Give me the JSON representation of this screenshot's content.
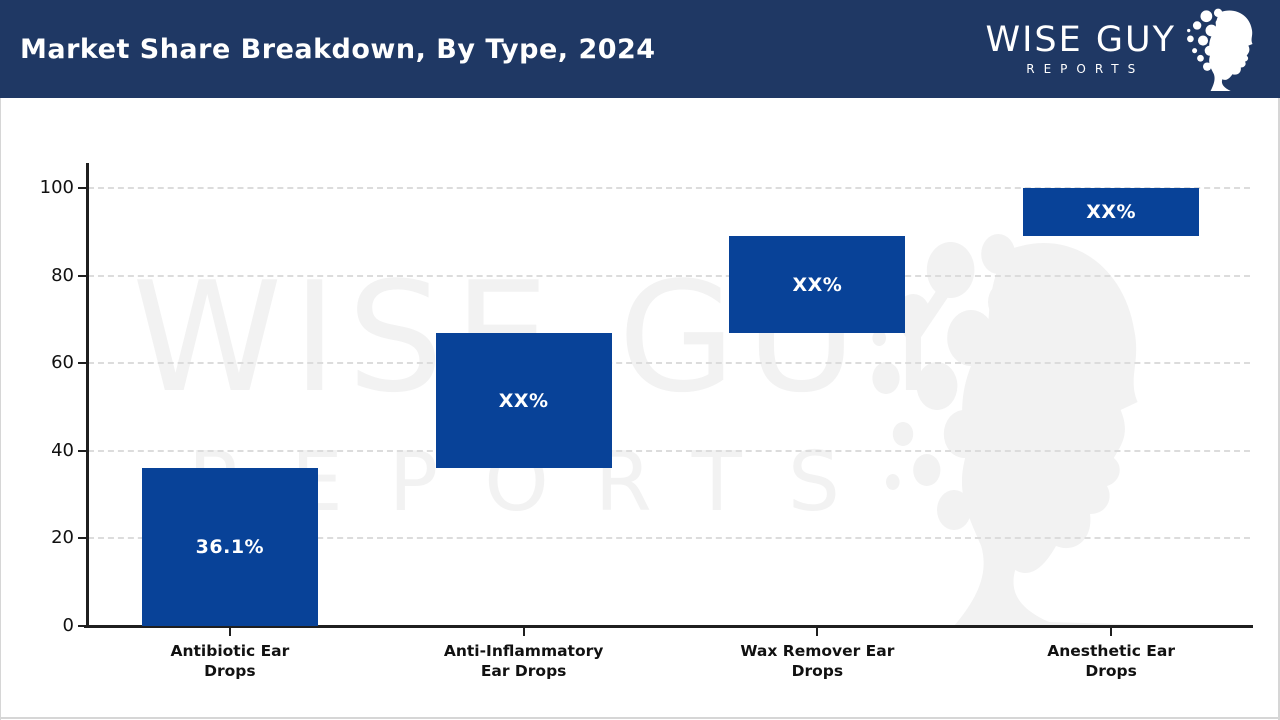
{
  "header": {
    "title": "Market Share Breakdown, By Type, 2024",
    "logo": {
      "line1": "WISE GUY",
      "line2": "REPORTS"
    }
  },
  "watermark": {
    "line1": "WISE GUY",
    "line2": "REPORTS"
  },
  "chart_data": {
    "type": "bar",
    "subtype": "waterfall",
    "title": "Market Share Breakdown, By Type, 2024",
    "categories": [
      "Antibiotic Ear Drops",
      "Anti-Inflammatory Ear Drops",
      "Wax Remover Ear Drops",
      "Anesthetic Ear Drops"
    ],
    "category_lines": [
      [
        "Antibiotic Ear",
        "Drops"
      ],
      [
        "Anti-Inflammatory",
        "Ear Drops"
      ],
      [
        "Wax Remover Ear",
        "Drops"
      ],
      [
        "Anesthetic Ear",
        "Drops"
      ]
    ],
    "segments": [
      {
        "label": "36.1%",
        "start": 0,
        "end": 36.1
      },
      {
        "label": "XX%",
        "start": 36.1,
        "end": 66.8
      },
      {
        "label": "XX%",
        "start": 66.8,
        "end": 89.0
      },
      {
        "label": "XX%",
        "start": 89.0,
        "end": 100
      }
    ],
    "xlabel": "",
    "ylabel": "",
    "ylim": [
      0,
      100
    ],
    "yticks": [
      0,
      20,
      40,
      60,
      80,
      100
    ],
    "grid": "horizontal-dashed",
    "legend": "none",
    "colors": {
      "bar": "#084298",
      "bar_label": "#ffffff",
      "header_bg": "#1f3864",
      "grid": "#dcdcdc",
      "axis": "#1f1f1f",
      "watermark": "#f2f2f2"
    }
  }
}
